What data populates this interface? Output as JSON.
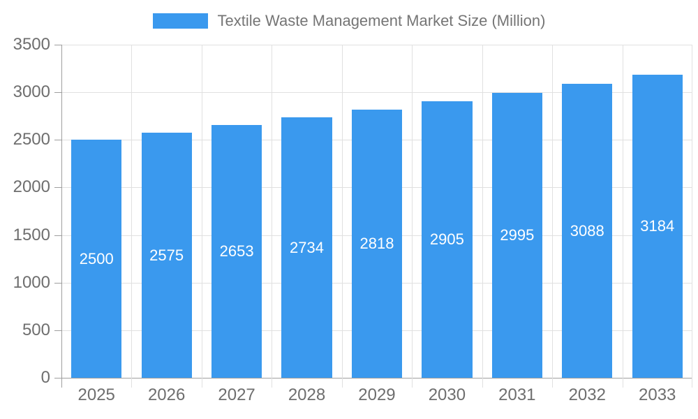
{
  "legend": {
    "label": "Textile Waste Management Market Size (Million)"
  },
  "colors": {
    "bar": "#3A99EE",
    "grid": "#E0E0E0",
    "axis": "#9E9E9E",
    "axis_label": "#6E6E6E",
    "legend_text": "#757575",
    "bar_label": "#FFFFFF",
    "background": "#FFFFFF"
  },
  "chart_data": {
    "type": "bar",
    "title": "Textile Waste Management Market Size (Million)",
    "categories": [
      "2025",
      "2026",
      "2027",
      "2028",
      "2029",
      "2030",
      "2031",
      "2032",
      "2033"
    ],
    "values": [
      2500,
      2575,
      2653,
      2734,
      2818,
      2905,
      2995,
      3088,
      3184
    ],
    "series_name": "Textile Waste Management Market Size (Million)",
    "xlabel": "",
    "ylabel": "",
    "ylim": [
      0,
      3500
    ],
    "ytick_step": 500,
    "ytick_labels": [
      "0",
      "500",
      "1000",
      "1500",
      "2000",
      "2500",
      "3000",
      "3500"
    ],
    "grid": true,
    "legend_position": "top",
    "bar_value_labels": "inside-center"
  }
}
